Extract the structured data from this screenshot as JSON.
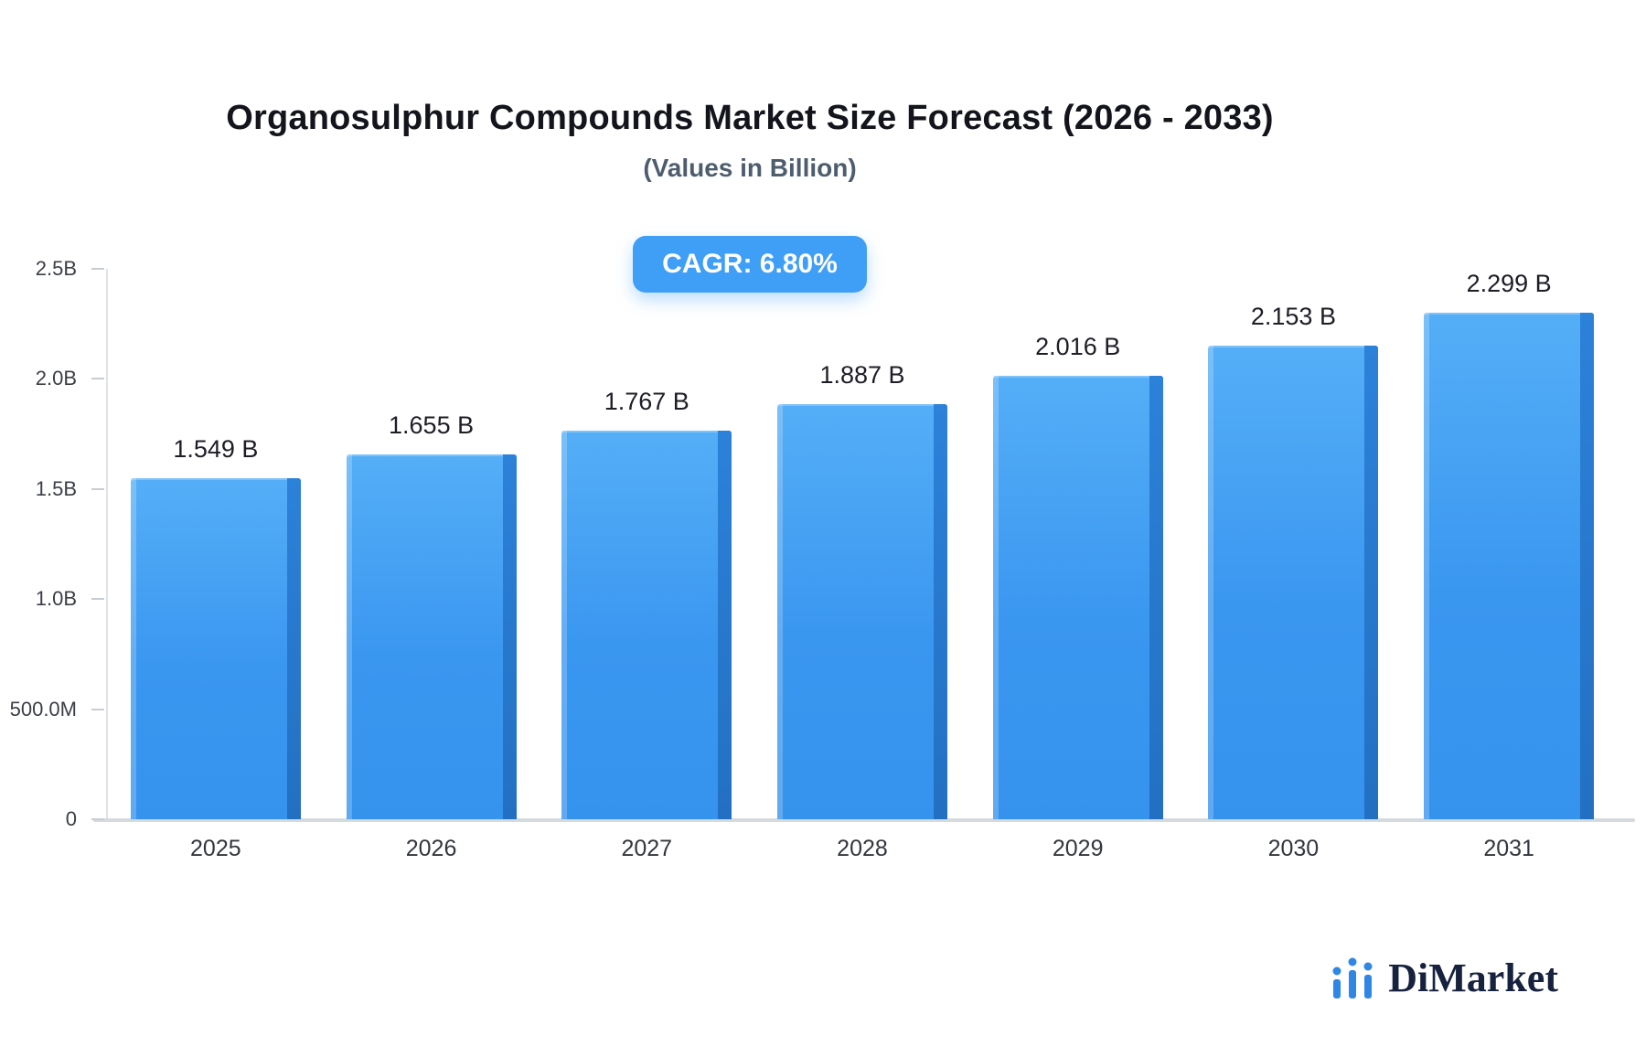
{
  "title": "Organosulphur Compounds Market Size Forecast (2026 - 2033)",
  "subtitle": "(Values in Billion)",
  "badge": {
    "label": "CAGR: 6.80%",
    "bg_color": "#3f9ef6",
    "text_color": "#ffffff"
  },
  "logo": {
    "text": "DiMarket",
    "icon": "bar-chart-icon",
    "text_color": "#17223f",
    "icon_color": "#2f86e5"
  },
  "chart_data": {
    "type": "bar",
    "categories": [
      "2025",
      "2026",
      "2027",
      "2028",
      "2029",
      "2030",
      "2031"
    ],
    "values": [
      1.549,
      1.655,
      1.767,
      1.887,
      2.016,
      2.153,
      2.299
    ],
    "value_labels": [
      "1.549 B",
      "1.655 B",
      "1.767 B",
      "1.887 B",
      "2.016 B",
      "2.153 B",
      "2.299 B"
    ],
    "title": "Organosulphur Compounds Market Size Forecast (2026 - 2033)",
    "subtitle": "(Values in Billion)",
    "xlabel": "",
    "ylabel": "",
    "ylim": [
      0,
      2.5
    ],
    "y_ticks": [
      "0",
      "500.0M",
      "1.0B",
      "1.5B",
      "2.0B",
      "2.5B"
    ],
    "bar_color": "#3d9ff2",
    "bar_edge_color": "#2571c3",
    "grid": false,
    "legend": false,
    "annotation": "CAGR: 6.80%"
  }
}
